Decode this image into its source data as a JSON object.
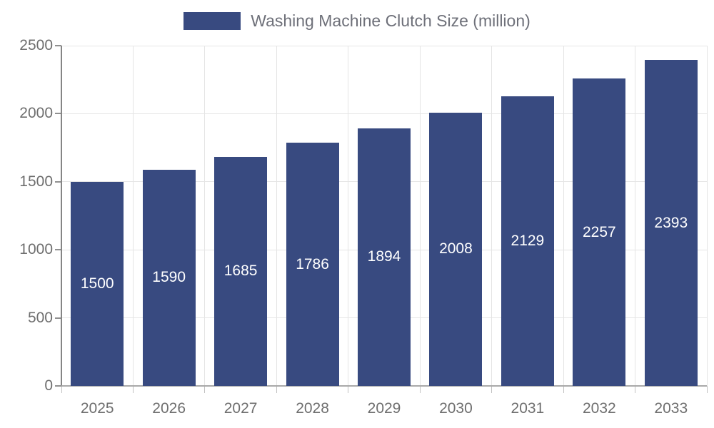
{
  "chart_data": {
    "type": "bar",
    "title": "Washing Machine Clutch Size (million)",
    "legend": {
      "label": "Washing Machine Clutch Size (million)",
      "position": "top-center"
    },
    "categories": [
      "2025",
      "2026",
      "2027",
      "2028",
      "2029",
      "2030",
      "2031",
      "2032",
      "2033"
    ],
    "values": [
      1500,
      1590,
      1685,
      1786,
      1894,
      2008,
      2129,
      2257,
      2393
    ],
    "xlabel": "",
    "ylabel": "",
    "ylim": [
      0,
      2500
    ],
    "yticks": [
      0,
      500,
      1000,
      1500,
      2000,
      2500
    ],
    "grid": "both",
    "bar_label_position": "inside-middle",
    "colors": {
      "bar": "#384A80",
      "bar_label": "#ffffff",
      "grid_line": "#e5e5e5",
      "y_axis_line": "#858585",
      "x_axis_line": "#a9a9a9",
      "y_tick_mark": "#909090",
      "x_tick_mark": "#c2c2c2",
      "tick_label": "#6e6e6e",
      "legend_text": "#6e7079",
      "background": "#ffffff"
    }
  }
}
